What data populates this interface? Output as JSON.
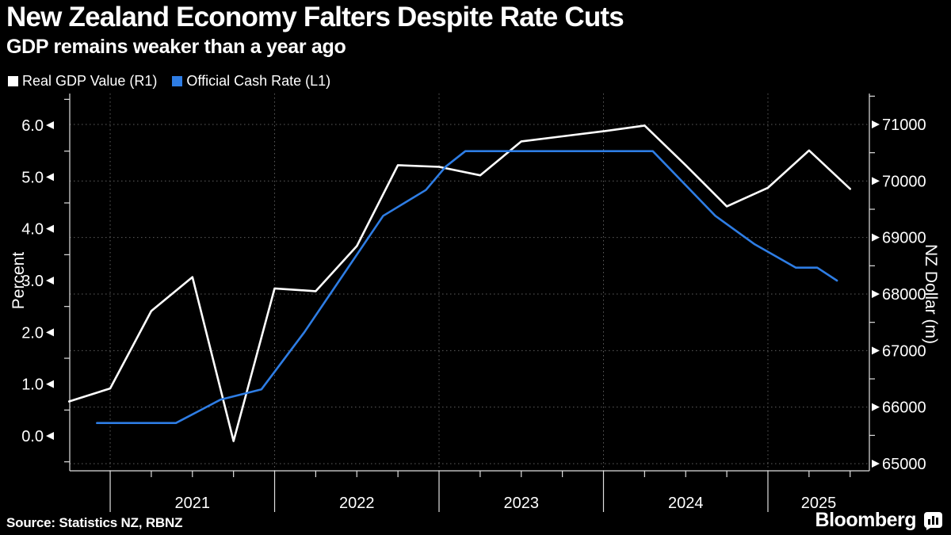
{
  "header": {
    "title": "New Zealand Economy Falters Despite Rate Cuts",
    "subtitle": "GDP remains weaker than a year ago"
  },
  "legend": {
    "items": [
      {
        "label": "Real GDP Value (R1)",
        "color": "#ffffff"
      },
      {
        "label": "Official Cash Rate (L1)",
        "color": "#2e7de4"
      }
    ]
  },
  "footer": {
    "source": "Source: Statistics NZ, RBNZ",
    "brand": "Bloomberg"
  },
  "colors": {
    "background": "#000000",
    "text": "#ffffff",
    "grid": "#5e5e5e",
    "axis": "#e0e0e0",
    "gdp_line": "#ffffff",
    "ocr_line": "#2e7de4"
  },
  "chart_data": {
    "type": "line",
    "title": "New Zealand Economy Falters Despite Rate Cuts",
    "subtitle": "GDP remains weaker than a year ago",
    "x_axis": {
      "years": [
        2021,
        2022,
        2023,
        2024,
        2025
      ],
      "range": [
        2020.754,
        2025.617
      ],
      "minor_tick": "quarterly"
    },
    "left_axis": {
      "label": "Percent",
      "tick_labels": [
        "0.0",
        "1.0",
        "2.0",
        "3.0",
        "4.0",
        "5.0",
        "6.0"
      ],
      "tick_values": [
        0,
        1,
        2,
        3,
        4,
        5,
        6
      ],
      "minor_step": 0.5,
      "series": "Official Cash Rate (L1)"
    },
    "right_axis": {
      "label": "NZ Dollar (m)",
      "tick_values": [
        65000,
        66000,
        67000,
        68000,
        69000,
        70000,
        71000
      ],
      "minor_step": 500,
      "series": "Real GDP Value (R1)"
    },
    "grid": {
      "style": "dotted",
      "horizontal": "right-axis-ticks",
      "vertical": "year-boundaries"
    },
    "legend_position": "top-left",
    "series": [
      {
        "name": "Real GDP Value (R1)",
        "axis": "right",
        "color": "#ffffff",
        "points": [
          [
            2020.75,
            66100
          ],
          [
            2021.0,
            66330
          ],
          [
            2021.25,
            67700
          ],
          [
            2021.5,
            68300
          ],
          [
            2021.75,
            65400
          ],
          [
            2022.0,
            68100
          ],
          [
            2022.25,
            68050
          ],
          [
            2022.5,
            68850
          ],
          [
            2022.75,
            70280
          ],
          [
            2023.0,
            70250
          ],
          [
            2023.25,
            70100
          ],
          [
            2023.5,
            70700
          ],
          [
            2023.75,
            70790
          ],
          [
            2024.0,
            70880
          ],
          [
            2024.25,
            70980
          ],
          [
            2024.5,
            70280
          ],
          [
            2024.75,
            69550
          ],
          [
            2025.0,
            69880
          ],
          [
            2025.25,
            70540
          ],
          [
            2025.5,
            69860
          ]
        ]
      },
      {
        "name": "Official Cash Rate (L1)",
        "axis": "left",
        "color": "#2e7de4",
        "points": [
          [
            2020.92,
            0.25
          ],
          [
            2021.4,
            0.25
          ],
          [
            2021.67,
            0.7
          ],
          [
            2021.92,
            0.9
          ],
          [
            2022.18,
            2.0
          ],
          [
            2022.66,
            4.25
          ],
          [
            2022.92,
            4.75
          ],
          [
            2023.04,
            5.2
          ],
          [
            2023.16,
            5.5
          ],
          [
            2024.3,
            5.5
          ],
          [
            2024.68,
            4.25
          ],
          [
            2024.92,
            3.7
          ],
          [
            2025.17,
            3.25
          ],
          [
            2025.3,
            3.25
          ],
          [
            2025.42,
            3.0
          ]
        ]
      }
    ]
  }
}
